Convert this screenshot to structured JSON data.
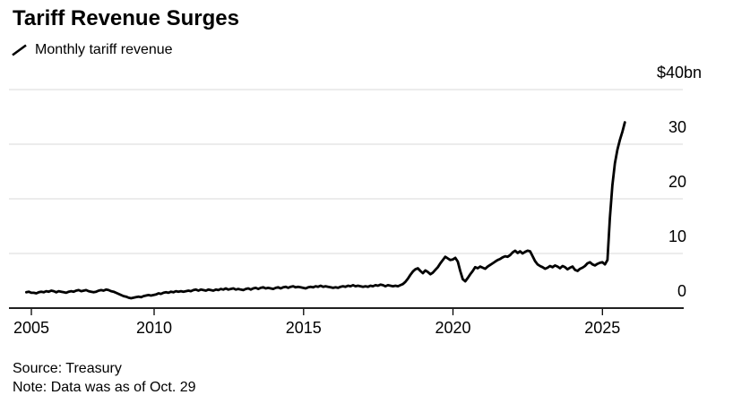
{
  "title": "Tariff Revenue Surges",
  "legend": {
    "label": "Monthly tariff revenue"
  },
  "footer": {
    "source": "Source: Treasury",
    "note": "Note: Data was as of Oct. 29"
  },
  "colors": {
    "line": "#000000",
    "grid": "#e0e0e0",
    "axis": "#000000",
    "text": "#000000",
    "background": "#ffffff"
  },
  "chart_data": {
    "type": "line",
    "title": "Tariff Revenue Surges",
    "series_name": "Monthly tariff revenue",
    "unit": "$bn",
    "start_month": "2005-10",
    "end_month": "2025-10",
    "ylim": [
      0,
      40
    ],
    "grid": "horizontal",
    "y_axis_labels": [
      {
        "value": 40,
        "label": "$40bn"
      },
      {
        "value": 30,
        "label": "30"
      },
      {
        "value": 20,
        "label": "20"
      },
      {
        "value": 10,
        "label": "10"
      },
      {
        "value": 0,
        "label": "0"
      }
    ],
    "x_tick_labels": [
      "2005",
      "2010",
      "2015",
      "2020",
      "2025"
    ],
    "monthly_values": {
      "2005": [
        2.9,
        3.0,
        2.8
      ],
      "2006": [
        2.8,
        2.7,
        2.9,
        3.0,
        2.9,
        3.1,
        3.0,
        3.2,
        3.1,
        2.9,
        3.1,
        3.0
      ],
      "2007": [
        2.9,
        2.8,
        3.0,
        3.1,
        3.0,
        3.2,
        3.3,
        3.1,
        3.2,
        3.3,
        3.1,
        3.0
      ],
      "2008": [
        2.9,
        3.0,
        3.2,
        3.3,
        3.2,
        3.4,
        3.3,
        3.1,
        3.0,
        2.8,
        2.6,
        2.4
      ],
      "2009": [
        2.2,
        2.1,
        1.9,
        1.8,
        1.9,
        2.0,
        2.1,
        2.0,
        2.2,
        2.3,
        2.4,
        2.3
      ],
      "2010": [
        2.4,
        2.5,
        2.7,
        2.6,
        2.8,
        2.9,
        2.8,
        3.0,
        2.9,
        3.1,
        3.0,
        3.1
      ],
      "2011": [
        3.0,
        3.1,
        3.2,
        3.1,
        3.3,
        3.4,
        3.2,
        3.4,
        3.3,
        3.2,
        3.4,
        3.3
      ],
      "2012": [
        3.2,
        3.4,
        3.3,
        3.5,
        3.4,
        3.6,
        3.4,
        3.5,
        3.6,
        3.4,
        3.5,
        3.4
      ],
      "2013": [
        3.3,
        3.5,
        3.6,
        3.4,
        3.6,
        3.7,
        3.5,
        3.7,
        3.8,
        3.6,
        3.7,
        3.6
      ],
      "2014": [
        3.5,
        3.7,
        3.8,
        3.6,
        3.8,
        3.9,
        3.7,
        3.9,
        4.0,
        3.8,
        3.9,
        3.8
      ],
      "2015": [
        3.7,
        3.6,
        3.8,
        3.9,
        3.8,
        4.0,
        3.9,
        4.1,
        3.9,
        4.0,
        3.9,
        3.8
      ],
      "2016": [
        3.7,
        3.8,
        3.7,
        3.9,
        4.0,
        3.9,
        4.1,
        4.0,
        4.2,
        4.0,
        4.1,
        4.0
      ],
      "2017": [
        3.9,
        4.0,
        3.9,
        4.1,
        4.0,
        4.2,
        4.1,
        4.3,
        4.2,
        4.0,
        4.2,
        4.1
      ],
      "2018": [
        4.0,
        4.1,
        4.0,
        4.2,
        4.4,
        4.8,
        5.4,
        6.1,
        6.7,
        7.1,
        7.3,
        6.8
      ],
      "2019": [
        6.4,
        6.9,
        6.6,
        6.2,
        6.5,
        7.0,
        7.5,
        8.2,
        8.8,
        9.4,
        9.1,
        8.8
      ],
      "2020": [
        8.9,
        9.2,
        8.5,
        6.8,
        5.3,
        4.9,
        5.5,
        6.2,
        6.8,
        7.5,
        7.3,
        7.6
      ],
      "2021": [
        7.4,
        7.2,
        7.6,
        7.9,
        8.2,
        8.5,
        8.8,
        9.0,
        9.3,
        9.5,
        9.4,
        9.7
      ],
      "2022": [
        10.2,
        10.5,
        10.1,
        10.4,
        10.0,
        10.3,
        10.5,
        10.4,
        9.5,
        8.6,
        8.0,
        7.7
      ],
      "2023": [
        7.5,
        7.2,
        7.4,
        7.7,
        7.5,
        7.8,
        7.6,
        7.3,
        7.7,
        7.5,
        7.1,
        7.4
      ],
      "2024": [
        7.6,
        7.0,
        6.8,
        7.2,
        7.4,
        7.7,
        8.2,
        8.4,
        8.0,
        7.8,
        8.1,
        8.3
      ],
      "2025": [
        8.4,
        8.0,
        8.8,
        16.5,
        22.5,
        26.5,
        29.0,
        30.8,
        32.3,
        34.0
      ]
    }
  }
}
